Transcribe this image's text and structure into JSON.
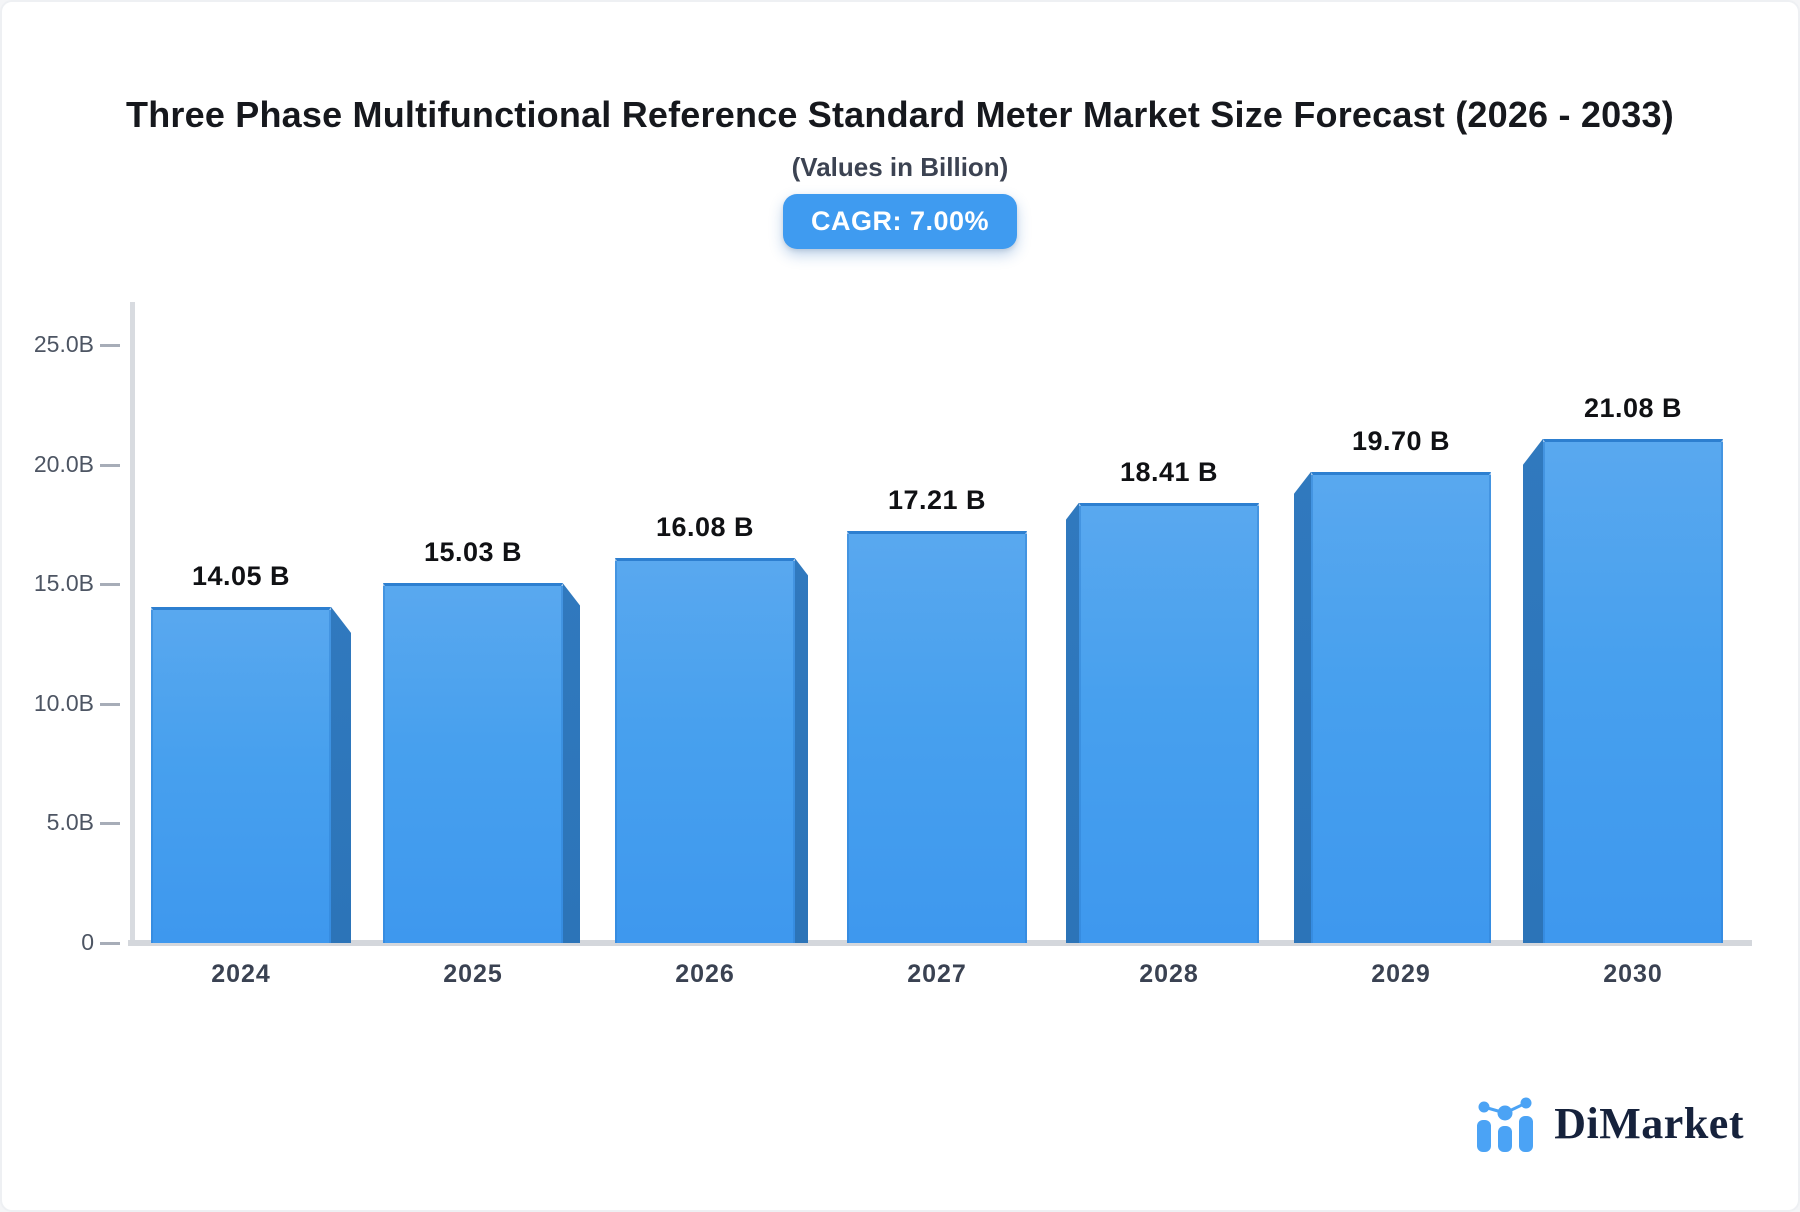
{
  "header": {
    "title": "Three Phase Multifunctional Reference Standard Meter Market Size Forecast (2026 - 2033)",
    "subtitle": "(Values in Billion)",
    "badge": "CAGR: 7.00%"
  },
  "brand": {
    "name": "DiMarket",
    "icon": "bar-chart-logo-icon",
    "icon_color": "#4BA3F5",
    "text_color": "#16223C"
  },
  "chart_data": {
    "type": "bar",
    "title": "Three Phase Multifunctional Reference Standard Meter Market Size Forecast (2026 - 2033)",
    "subtitle": "(Values in Billion)",
    "cagr_badge": "CAGR: 7.00%",
    "categories": [
      "2024",
      "2025",
      "2026",
      "2027",
      "2028",
      "2029",
      "2030"
    ],
    "values": [
      14.05,
      15.03,
      16.08,
      17.21,
      18.41,
      19.7,
      21.08
    ],
    "value_labels": [
      "14.05 B",
      "15.03 B",
      "16.08 B",
      "17.21 B",
      "18.41 B",
      "19.70 B",
      "21.08 B"
    ],
    "xlabel": "",
    "ylabel": "",
    "ylim": [
      0,
      25
    ],
    "yticks": {
      "values": [
        0,
        5,
        10,
        15,
        20,
        25
      ],
      "labels": [
        "0",
        "5.0B",
        "10.0B",
        "15.0B",
        "20.0B",
        "25.0B"
      ]
    },
    "grid": false,
    "legend": false,
    "style": "3d-perspective-bars",
    "colors": {
      "bar_top": "#59A8EF",
      "bar_bottom": "#3E98EE",
      "bar_edge": "#2D7FD0",
      "bar_side_3d": "#2E77BB",
      "axis": "#D6D9DE",
      "tick_dash": "#A7ADB8",
      "y_label": "#4D5563",
      "x_label": "#3A4252",
      "value_label": "#101114",
      "badge_bg": "#3F9BF0",
      "badge_text": "#FFFFFF",
      "title": "#16181D",
      "subtitle": "#3C4352"
    }
  }
}
